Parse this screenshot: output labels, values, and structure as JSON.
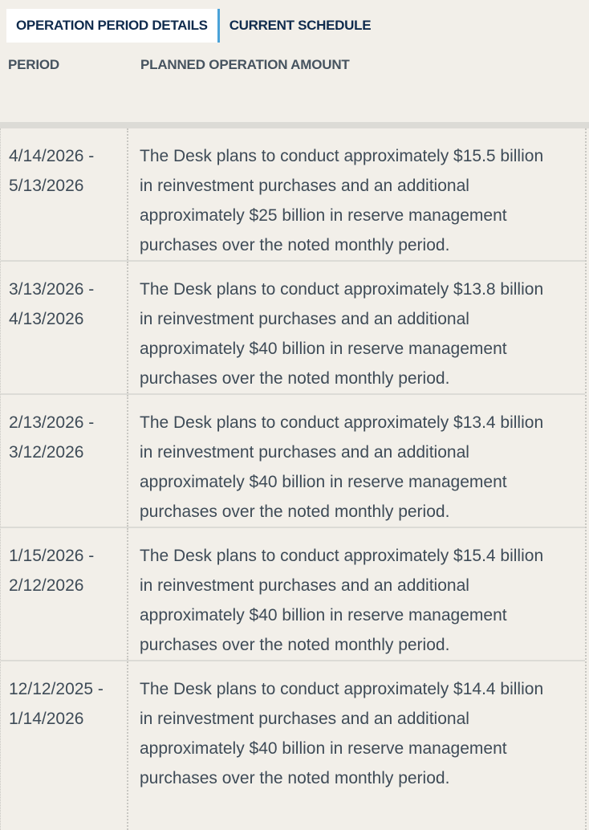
{
  "tabs": [
    {
      "label": "OPERATION PERIOD DETAILS",
      "active": true
    },
    {
      "label": "CURRENT SCHEDULE",
      "active": false
    }
  ],
  "table": {
    "columns": [
      "PERIOD",
      "PLANNED OPERATION AMOUNT"
    ],
    "rows": [
      {
        "period_lines": [
          "4/14/2026 -",
          "5/13/2026"
        ],
        "amount_lines": [
          "The Desk plans to conduct approximately $15.5 billion",
          "in reinvestment purchases and an additional",
          "approximately $25 billion in reserve management",
          "purchases over the noted monthly period."
        ]
      },
      {
        "period_lines": [
          "3/13/2026 -",
          "4/13/2026"
        ],
        "amount_lines": [
          "The Desk plans to conduct approximately $13.8 billion",
          "in reinvestment purchases and an additional",
          "approximately $40 billion in reserve management",
          "purchases over the noted monthly period."
        ]
      },
      {
        "period_lines": [
          "2/13/2026 -",
          "3/12/2026"
        ],
        "amount_lines": [
          "The Desk plans to conduct approximately $13.4 billion",
          "in reinvestment purchases and an additional",
          "approximately $40 billion in reserve management",
          "purchases over the noted monthly period."
        ]
      },
      {
        "period_lines": [
          "1/15/2026 -",
          "2/12/2026"
        ],
        "amount_lines": [
          "The Desk plans to conduct approximately $15.4 billion",
          "in reinvestment purchases and an additional",
          "approximately $40 billion in reserve management",
          "purchases over the noted monthly period."
        ]
      },
      {
        "period_lines": [
          "12/12/2025 -",
          "1/14/2026"
        ],
        "amount_lines": [
          "The Desk plans to conduct approximately $14.4 billion",
          "in reinvestment purchases and an additional",
          "approximately $40 billion in reserve management",
          "purchases over the noted monthly period."
        ]
      }
    ]
  },
  "colors": {
    "background": "#f2efe9",
    "active_tab_background": "#ffffff",
    "tab_text": "#0f2b4d",
    "accent_blue": "#4aa2d8",
    "header_text": "#46535f",
    "body_text": "#3e4b57",
    "separator_gray": "#dcdbd6",
    "dotted_border": "#c8c7c2"
  }
}
